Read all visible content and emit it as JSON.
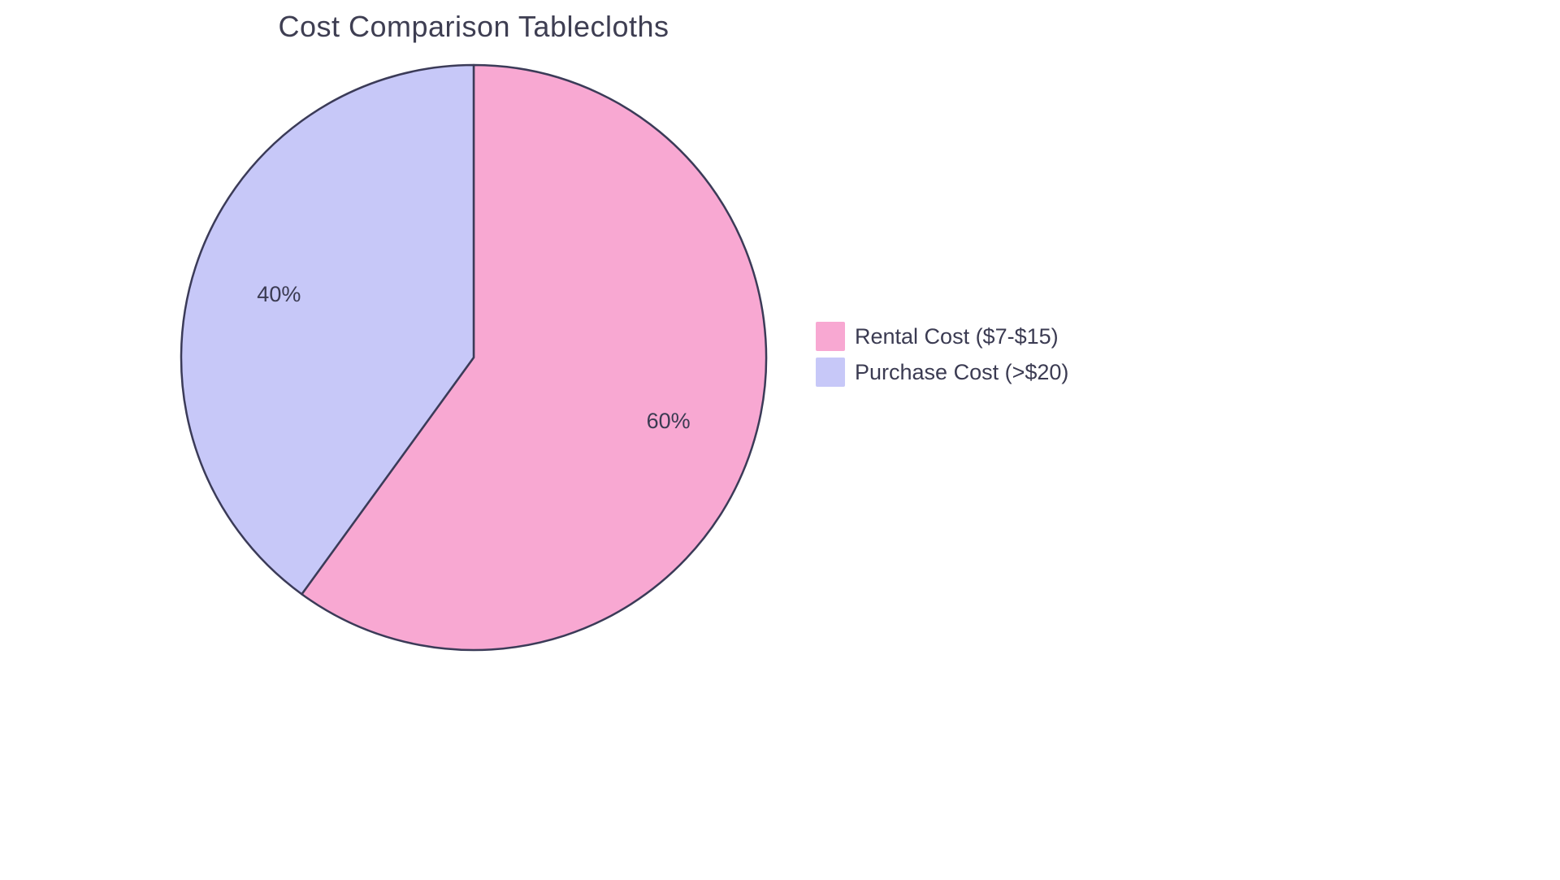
{
  "chart_data": {
    "type": "pie",
    "title": "Cost Comparison Tablecloths",
    "slices": [
      {
        "label": "Rental Cost ($7-$15)",
        "value": 60,
        "pct_label": "60%",
        "color": "#F8A8D2"
      },
      {
        "label": "Purchase Cost (>$20)",
        "value": 40,
        "pct_label": "40%",
        "color": "#C7C8F8"
      }
    ],
    "start_angle_deg": 0,
    "direction": "clockwise",
    "outline_color": "#3B3B58",
    "label_color": "#3B3B52",
    "legend_position": "right",
    "background": "#FFFFFF"
  }
}
